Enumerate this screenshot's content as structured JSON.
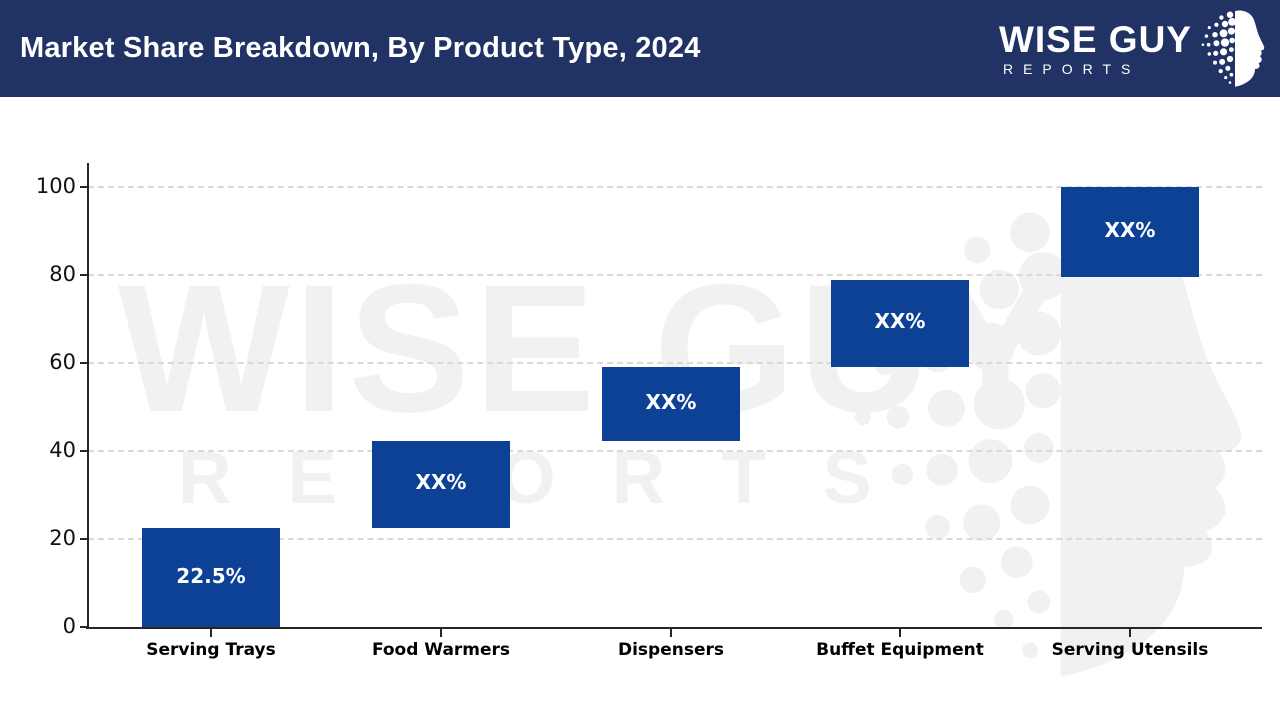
{
  "header": {
    "title": "Market Share Breakdown, By Product Type, 2024",
    "bg_color": "#213364",
    "logo": {
      "line1": "WISE GUY",
      "line2": "REPORTS",
      "color": "#ffffff"
    }
  },
  "watermark": {
    "line1": "WISE GUY",
    "line2": "REPORTS",
    "color": "#f1f1f1"
  },
  "chart_data": {
    "type": "bar",
    "subtype": "waterfall-floating-bars",
    "title": "Market Share Breakdown, By Product Type, 2024",
    "xlabel": "",
    "ylabel": "",
    "categories": [
      "Serving Trays",
      "Food Warmers",
      "Dispensers",
      "Buffet Equipment",
      "Serving Utensils"
    ],
    "segments": [
      {
        "category": "Serving Trays",
        "start": 0,
        "end": 22.5,
        "label": "22.5%"
      },
      {
        "category": "Food Warmers",
        "start": 22.5,
        "end": 42.3,
        "label": "XX%"
      },
      {
        "category": "Dispensers",
        "start": 42.3,
        "end": 59.1,
        "label": "XX%"
      },
      {
        "category": "Buffet Equipment",
        "start": 59.2,
        "end": 78.9,
        "label": "XX%"
      },
      {
        "category": "Serving Utensils",
        "start": 79.5,
        "end": 100.1,
        "label": "XX%"
      }
    ],
    "y_ticks": [
      0,
      20,
      40,
      60,
      80,
      100
    ],
    "ylim": [
      0,
      105
    ],
    "grid": "horizontal-dashed",
    "legend": "none",
    "bar_color": "#0d4196",
    "bar_label_color": "#ffffff",
    "grid_color": "#d9d9d9",
    "axis_color": "#262626"
  }
}
